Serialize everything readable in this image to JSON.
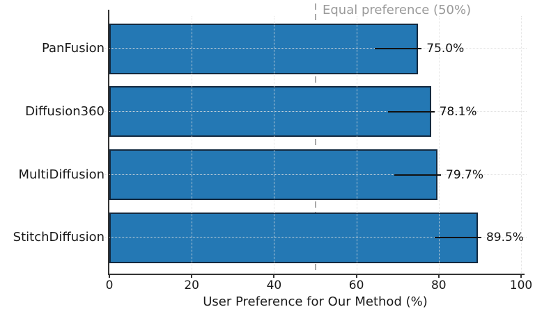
{
  "chart_data": {
    "type": "bar",
    "orientation": "horizontal",
    "title": "",
    "xlabel": "User Preference for Our Method (%)",
    "ylabel": "",
    "categories": [
      "PanFusion",
      "Diffusion360",
      "MultiDiffusion",
      "StitchDiffusion"
    ],
    "values": [
      75.0,
      78.1,
      79.7,
      89.5
    ],
    "value_labels": [
      "75.0%",
      "78.1%",
      "79.7%",
      "89.5%"
    ],
    "xlim": [
      0,
      100
    ],
    "xticks": [
      0,
      20,
      40,
      60,
      80,
      100
    ],
    "grid": "dotted, vertical at ticks and horizontal at bar centers, drawn over bars",
    "legend": "none",
    "reference_line": {
      "value": 50,
      "style": "dashed",
      "label": "Equal preference (50%)"
    },
    "colors": {
      "bar_fill": "#2478b4",
      "bar_edge": "#13293f",
      "leader_line": "#111111",
      "reference_line": "#a8a8a8",
      "reference_text": "#9a9a9a",
      "grid": "#dcdcdc",
      "axis": "#333333",
      "text": "#1a1a1a"
    }
  }
}
